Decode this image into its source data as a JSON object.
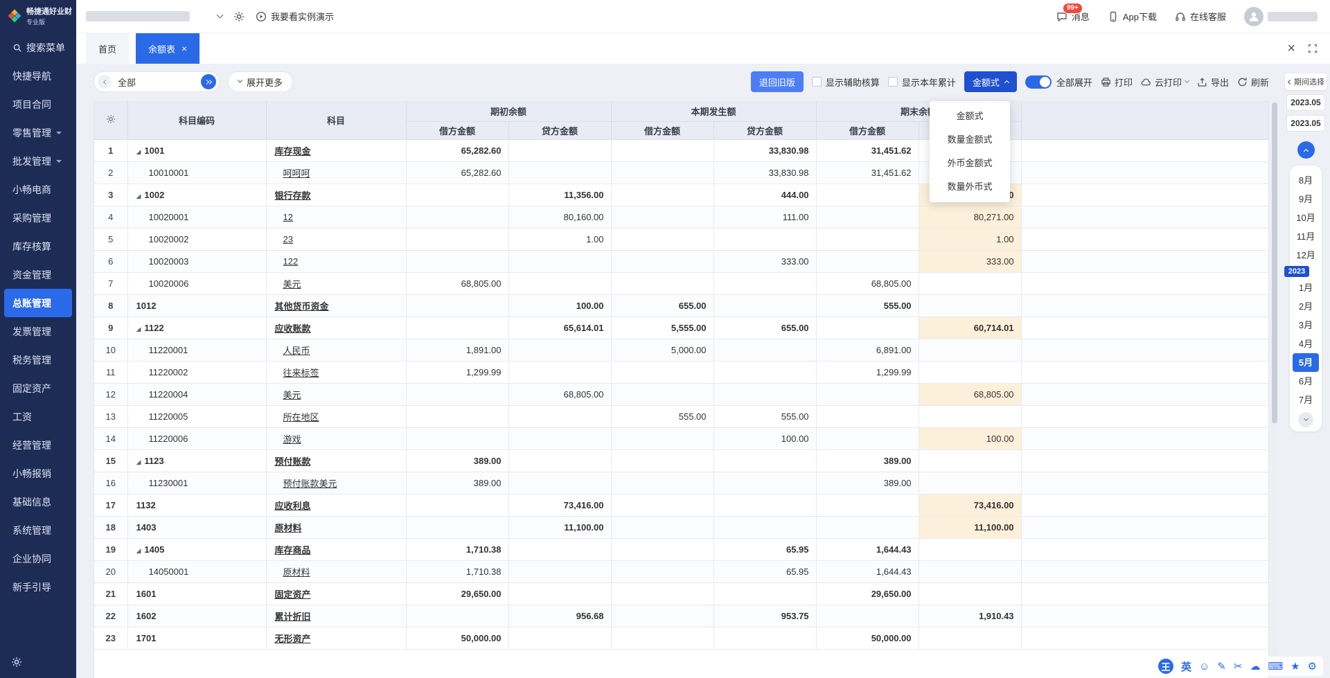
{
  "app": {
    "logo_title": "畅捷通好业财",
    "logo_subtitle": "专业版"
  },
  "sidebar": {
    "items": [
      {
        "id": "search-menu",
        "label": "搜索菜单",
        "icon": "search"
      },
      {
        "id": "quick-nav",
        "label": "快捷导航"
      },
      {
        "id": "project-contract",
        "label": "项目合同"
      },
      {
        "id": "retail",
        "label": "零售管理",
        "caret": true
      },
      {
        "id": "wholesale",
        "label": "批发管理",
        "caret": true
      },
      {
        "id": "xiaochang-ecommerce",
        "label": "小畅电商"
      },
      {
        "id": "purchase",
        "label": "采购管理"
      },
      {
        "id": "inventory-accounting",
        "label": "库存核算"
      },
      {
        "id": "funds",
        "label": "资金管理"
      },
      {
        "id": "general-ledger",
        "label": "总账管理",
        "active": true
      },
      {
        "id": "invoice",
        "label": "发票管理"
      },
      {
        "id": "tax",
        "label": "税务管理"
      },
      {
        "id": "fixed-assets",
        "label": "固定资产"
      },
      {
        "id": "payroll",
        "label": "工资"
      },
      {
        "id": "operations",
        "label": "经营管理"
      },
      {
        "id": "xiaochang-expense",
        "label": "小畅报销"
      },
      {
        "id": "basic-info",
        "label": "基础信息"
      },
      {
        "id": "system",
        "label": "系统管理"
      },
      {
        "id": "collaboration",
        "label": "企业协同"
      },
      {
        "id": "beginner-guide",
        "label": "新手引导"
      }
    ]
  },
  "topbar": {
    "demo_link": "我要看实例演示",
    "messages": "消息",
    "messages_badge": "99+",
    "app_download": "App下载",
    "online_support": "在线客服"
  },
  "tabs": {
    "home": "首页",
    "active_tab": "余额表",
    "close": "×"
  },
  "toolbar": {
    "filter_value": "全部",
    "expand_more": "展开更多",
    "back_to_old": "退回旧版",
    "show_aux": "显示辅助核算",
    "show_ytd": "显示本年累计",
    "format_button": "金额式",
    "expand_all": "全部展开",
    "print": "打印",
    "cloud_print": "云打印",
    "export": "导出",
    "refresh": "刷新"
  },
  "format_menu": {
    "items": [
      "金额式",
      "数量金额式",
      "外币金额式",
      "数量外币式"
    ]
  },
  "table": {
    "col_code": "科目编码",
    "col_name": "科目",
    "group_opening": "期初余额",
    "group_current": "本期发生额",
    "group_ending": "期末余额",
    "sub_debit": "借方金额",
    "sub_credit": "贷方金额",
    "rows": [
      {
        "n": 1,
        "parent": true,
        "tri": true,
        "code": "1001",
        "name": "库存现金",
        "v": [
          "65,282.60",
          "",
          "",
          "33,830.98",
          "31,451.62",
          ""
        ],
        "hl": false
      },
      {
        "n": 2,
        "code": "10010001",
        "name": "呵呵呵",
        "v": [
          "65,282.60",
          "",
          "",
          "33,830.98",
          "31,451.62",
          ""
        ],
        "hl": false
      },
      {
        "n": 3,
        "parent": true,
        "tri": true,
        "code": "1002",
        "name": "银行存款",
        "v": [
          "",
          "11,356.00",
          "",
          "444.00",
          "",
          "11,800.00"
        ],
        "hl": true
      },
      {
        "n": 4,
        "code": "10020001",
        "name": "12",
        "v": [
          "",
          "80,160.00",
          "",
          "111.00",
          "",
          "80,271.00"
        ],
        "hl": true
      },
      {
        "n": 5,
        "code": "10020002",
        "name": "23",
        "v": [
          "",
          "1.00",
          "",
          "",
          "",
          "1.00"
        ],
        "hl": true
      },
      {
        "n": 6,
        "code": "10020003",
        "name": "122",
        "v": [
          "",
          "",
          "",
          "333.00",
          "",
          "333.00"
        ],
        "hl": true
      },
      {
        "n": 7,
        "code": "10020006",
        "name": "美元",
        "v": [
          "68,805.00",
          "",
          "",
          "",
          "68,805.00",
          ""
        ],
        "hl": false
      },
      {
        "n": 8,
        "parent": true,
        "code": "1012",
        "name": "其他货币资金",
        "v": [
          "",
          "100.00",
          "655.00",
          "",
          "555.00",
          ""
        ],
        "hl": false
      },
      {
        "n": 9,
        "parent": true,
        "tri": true,
        "code": "1122",
        "name": "应收账款",
        "v": [
          "",
          "65,614.01",
          "5,555.00",
          "655.00",
          "",
          "60,714.01"
        ],
        "hl": true
      },
      {
        "n": 10,
        "code": "11220001",
        "name": "人民币",
        "v": [
          "1,891.00",
          "",
          "5,000.00",
          "",
          "6,891.00",
          ""
        ],
        "hl": false
      },
      {
        "n": 11,
        "code": "11220002",
        "name": "往来标签",
        "v": [
          "1,299.99",
          "",
          "",
          "",
          "1,299.99",
          ""
        ],
        "hl": false
      },
      {
        "n": 12,
        "code": "11220004",
        "name": "美元",
        "v": [
          "",
          "68,805.00",
          "",
          "",
          "",
          "68,805.00"
        ],
        "hl": true
      },
      {
        "n": 13,
        "code": "11220005",
        "name": "所在地区",
        "v": [
          "",
          "",
          "555.00",
          "555.00",
          "",
          ""
        ],
        "hl": false
      },
      {
        "n": 14,
        "code": "11220006",
        "name": "游戏",
        "v": [
          "",
          "",
          "",
          "100.00",
          "",
          "100.00"
        ],
        "hl": true
      },
      {
        "n": 15,
        "parent": true,
        "tri": true,
        "code": "1123",
        "name": "预付账款",
        "v": [
          "389.00",
          "",
          "",
          "",
          "389.00",
          ""
        ],
        "hl": false
      },
      {
        "n": 16,
        "code": "11230001",
        "name": "预付账款美元",
        "v": [
          "389.00",
          "",
          "",
          "",
          "389.00",
          ""
        ],
        "hl": false
      },
      {
        "n": 17,
        "parent": true,
        "code": "1132",
        "name": "应收利息",
        "v": [
          "",
          "73,416.00",
          "",
          "",
          "",
          "73,416.00"
        ],
        "hl": true
      },
      {
        "n": 18,
        "parent": true,
        "code": "1403",
        "name": "原材料",
        "v": [
          "",
          "11,100.00",
          "",
          "",
          "",
          "11,100.00"
        ],
        "hl": true
      },
      {
        "n": 19,
        "parent": true,
        "tri": true,
        "code": "1405",
        "name": "库存商品",
        "v": [
          "1,710.38",
          "",
          "",
          "65.95",
          "1,644.43",
          ""
        ],
        "hl": false
      },
      {
        "n": 20,
        "code": "14050001",
        "name": "原材料",
        "v": [
          "1,710.38",
          "",
          "",
          "65.95",
          "1,644.43",
          ""
        ],
        "hl": false
      },
      {
        "n": 21,
        "parent": true,
        "code": "1601",
        "name": "固定资产",
        "v": [
          "29,650.00",
          "",
          "",
          "",
          "29,650.00",
          ""
        ],
        "hl": false
      },
      {
        "n": 22,
        "parent": true,
        "code": "1602",
        "name": "累计折旧",
        "v": [
          "",
          "956.68",
          "",
          "953.75",
          "",
          "1,910.43"
        ],
        "hl": false
      },
      {
        "n": 23,
        "parent": true,
        "code": "1701",
        "name": "无形资产",
        "v": [
          "50,000.00",
          "",
          "",
          "",
          "50,000.00",
          ""
        ],
        "hl": false
      }
    ]
  },
  "period": {
    "title": "期间选择",
    "date_from": "2023.05",
    "date_to": "2023.05",
    "months": [
      {
        "label": "8月"
      },
      {
        "label": "9月"
      },
      {
        "label": "10月"
      },
      {
        "label": "11月"
      },
      {
        "label": "12月"
      },
      {
        "year": "2023"
      },
      {
        "label": "1月"
      },
      {
        "label": "2月"
      },
      {
        "label": "3月"
      },
      {
        "label": "4月"
      },
      {
        "label": "5月",
        "selected": true
      },
      {
        "label": "6月"
      },
      {
        "label": "7月"
      }
    ]
  },
  "taskbar": {
    "ime_avatar": "王",
    "ime_lang": "英",
    "icons": [
      {
        "name": "emoji-icon",
        "glyph": "☺"
      },
      {
        "name": "pen-icon",
        "glyph": "✎"
      },
      {
        "name": "scissors-icon",
        "glyph": "✂"
      },
      {
        "name": "cloud-icon",
        "glyph": "☁"
      },
      {
        "name": "keyboard-icon",
        "glyph": "⌨"
      },
      {
        "name": "star-icon",
        "glyph": "★"
      },
      {
        "name": "settings-icon",
        "glyph": "⚙"
      }
    ]
  },
  "colors": {
    "accent": "#2a6ae9",
    "dark_accent": "#1e50d0",
    "sidebar_bg": "#1d2c55",
    "highlight_cell": "#fdf0da",
    "badge_red": "#f5473b"
  }
}
